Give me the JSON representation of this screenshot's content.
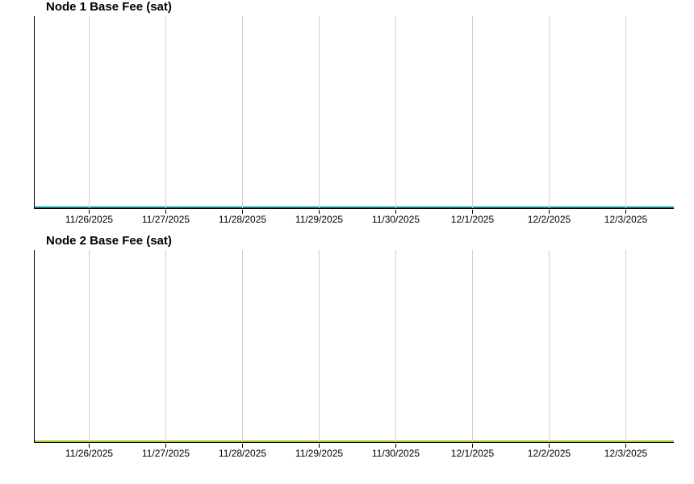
{
  "style": {
    "background_color": "#FFFFFF",
    "gridline_color": "#D0D0D0",
    "axis_color": "#000000",
    "text_color": "#000000"
  },
  "charts": [
    {
      "id": "node1-base-fee",
      "title": "Node 1 Base Fee (sat)",
      "line_color": "#008B8B",
      "x_labels": [
        "11/26/2025",
        "11/27/2025",
        "11/28/2025",
        "11/29/2025",
        "11/30/2025",
        "12/1/2025",
        "12/2/2025",
        "12/3/2025"
      ]
    },
    {
      "id": "node2-base-fee",
      "title": "Node 2 Base Fee (sat)",
      "line_color": "#9ACD32",
      "x_labels": [
        "11/26/2025",
        "11/27/2025",
        "11/28/2025",
        "11/29/2025",
        "11/30/2025",
        "12/1/2025",
        "12/2/2025",
        "12/3/2025"
      ]
    }
  ],
  "chart_data": [
    {
      "type": "line",
      "title": "Node 1 Base Fee (sat)",
      "x": [
        "11/26/2025",
        "11/27/2025",
        "11/28/2025",
        "11/29/2025",
        "11/30/2025",
        "12/1/2025",
        "12/2/2025",
        "12/3/2025"
      ],
      "series": [
        {
          "name": "Node 1 Base Fee (sat)",
          "color": "#008B8B",
          "values": [
            0,
            0,
            0,
            0,
            0,
            0,
            0,
            0
          ]
        }
      ],
      "xlabel": "",
      "ylabel": "",
      "y_axis_tick_labels": [],
      "grid": "vertical-only",
      "legend": "none"
    },
    {
      "type": "line",
      "title": "Node 2 Base Fee (sat)",
      "x": [
        "11/26/2025",
        "11/27/2025",
        "11/28/2025",
        "11/29/2025",
        "11/30/2025",
        "12/1/2025",
        "12/2/2025",
        "12/3/2025"
      ],
      "series": [
        {
          "name": "Node 2 Base Fee (sat)",
          "color": "#9ACD32",
          "values": [
            0,
            0,
            0,
            0,
            0,
            0,
            0,
            0
          ]
        }
      ],
      "xlabel": "",
      "ylabel": "",
      "y_axis_tick_labels": [],
      "grid": "vertical-only",
      "legend": "none"
    }
  ]
}
